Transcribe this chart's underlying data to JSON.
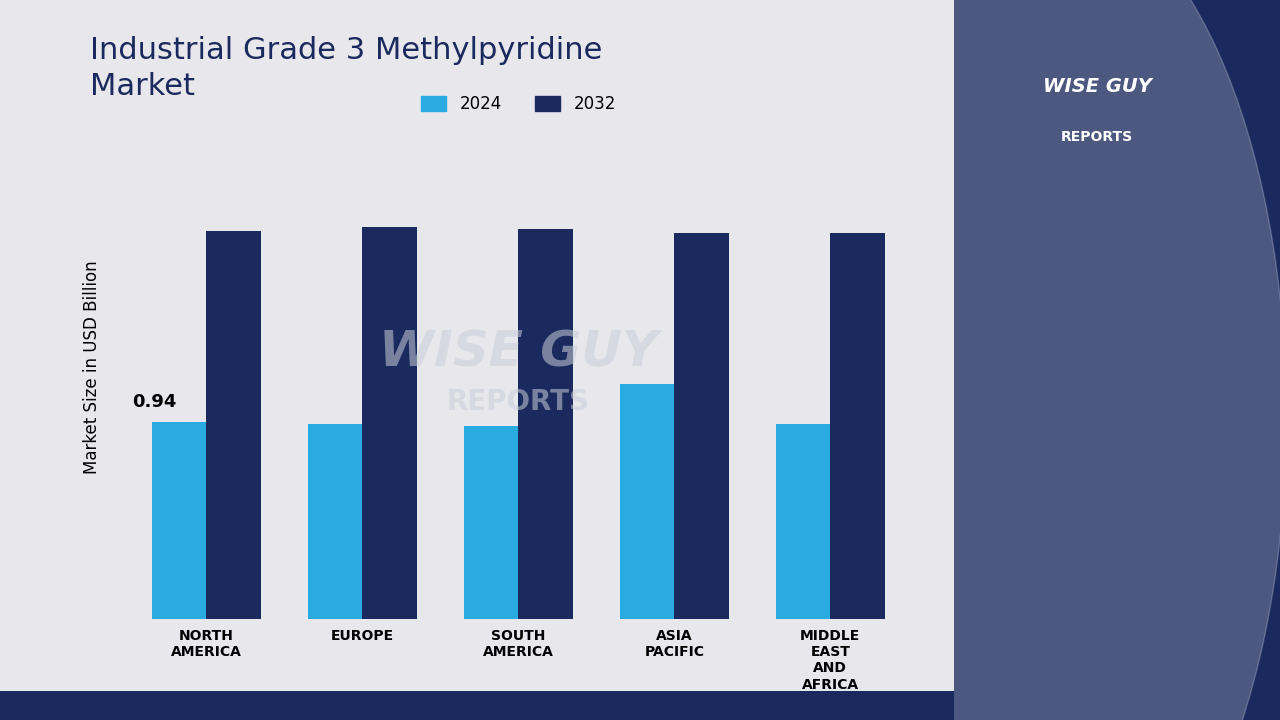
{
  "title": "Industrial Grade 3 Methylpyridine\nMarket",
  "ylabel": "Market Size in USD Billion",
  "categories": [
    "NORTH\nAMERICA",
    "EUROPE",
    "SOUTH\nAMERICA",
    "ASIA\nPACIFIC",
    "MIDDLE\nEAST\nAND\nAFRICA"
  ],
  "values_2024": [
    0.94,
    0.93,
    0.92,
    1.12,
    0.93
  ],
  "values_2032": [
    1.85,
    1.87,
    1.86,
    1.84,
    1.84
  ],
  "color_2024": "#29ABE2",
  "color_2032": "#1B2A5E",
  "annotation_value": "0.94",
  "background_color": "#E8E8EC",
  "title_color": "#1B2A5E",
  "bar_width": 0.35,
  "legend_labels": [
    "2024",
    "2032"
  ],
  "ylim": [
    0,
    2.4
  ],
  "right_panel_color": "#1B2A5E",
  "bottom_bar_color": "#1B2A5E",
  "watermark_color": "#C8CDD8"
}
